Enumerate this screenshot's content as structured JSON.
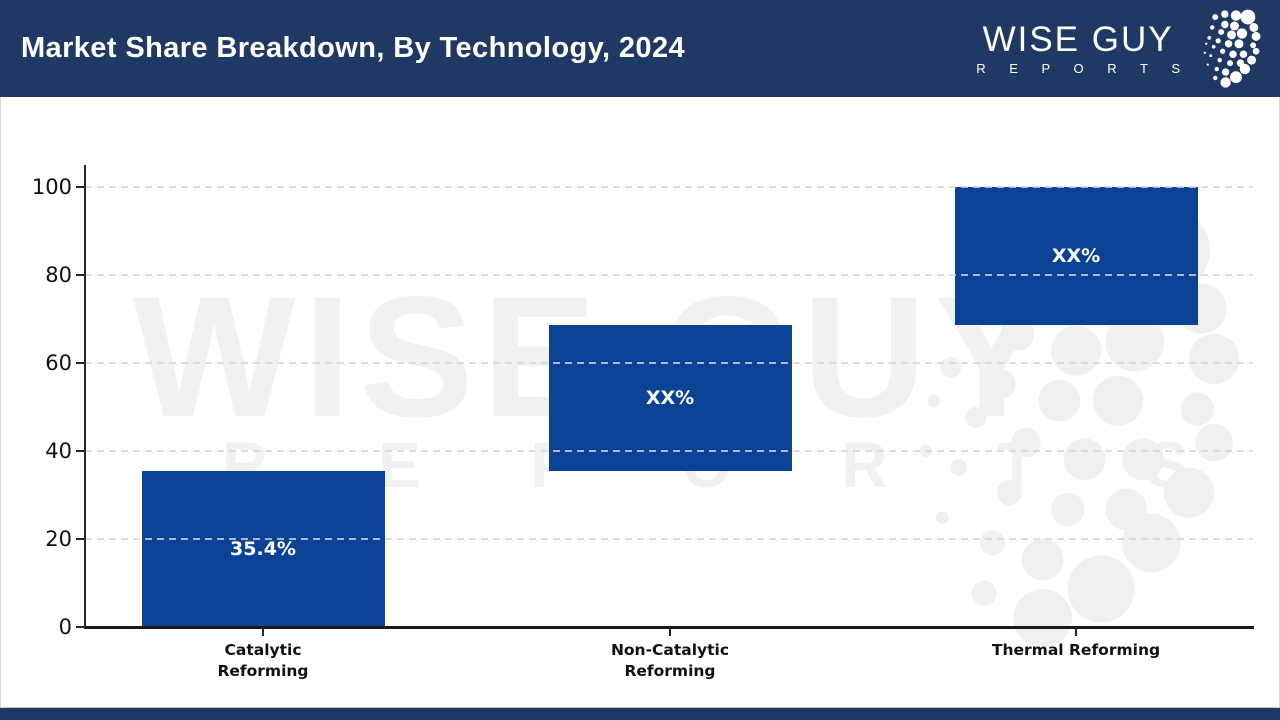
{
  "header": {
    "title": "Market Share Breakdown, By Technology, 2024",
    "brand": {
      "line1": "WISE GUY",
      "line2": "R E P O R T S"
    }
  },
  "watermark": {
    "line1": "WISE GUY",
    "line2": "R E P O R T S"
  },
  "chart_data": {
    "type": "bar",
    "subtype": "waterfall",
    "title": "Market Share Breakdown, By Technology, 2024",
    "categories": [
      [
        "Catalytic",
        "Reforming"
      ],
      [
        "Non-Catalytic",
        "Reforming"
      ],
      [
        "Thermal Reforming"
      ]
    ],
    "bars": [
      {
        "start": 0,
        "end": 35.4,
        "label": "35.4%"
      },
      {
        "start": 35.4,
        "end": 68.7,
        "label": "XX%"
      },
      {
        "start": 68.7,
        "end": 100,
        "label": "XX%"
      }
    ],
    "yticks": [
      0,
      20,
      40,
      60,
      80,
      100
    ],
    "ylim": [
      0,
      105
    ],
    "xlabel": "",
    "ylabel": "",
    "grid": "horizontal-dashed-over-bars",
    "legend": "none",
    "bar_color": "#0b4296",
    "bar_label_color": "#ffffff"
  },
  "colors": {
    "header_bg": "#1f3864",
    "footer_bg": "#1f3864",
    "bar": "#0b4296",
    "watermark": "#f1f1f1",
    "axis": "#262626",
    "grid": "#d5d5d5"
  }
}
